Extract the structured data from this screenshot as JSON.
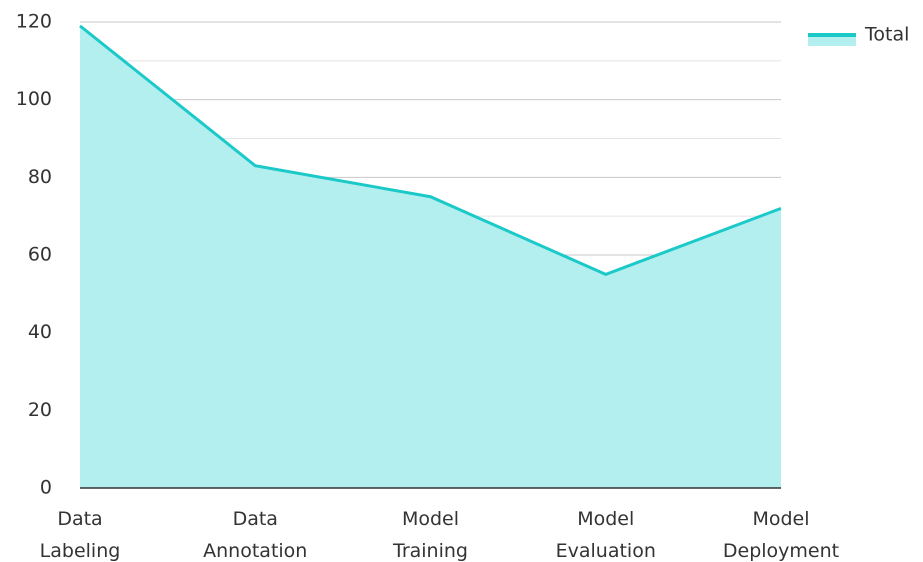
{
  "chart_data": {
    "type": "area",
    "categories": [
      "Data Labeling",
      "Data Annotation",
      "Model Training",
      "Model Evaluation",
      "Model Deployment"
    ],
    "series": [
      {
        "name": "Total",
        "color": "#1cc9c9",
        "fill": "#b3efee",
        "values": [
          119,
          83,
          75,
          55,
          72
        ]
      }
    ],
    "ylim": [
      0,
      120
    ],
    "yticks": [
      0,
      20,
      40,
      60,
      80,
      100,
      120
    ],
    "grid": true,
    "legend": "top-right"
  }
}
